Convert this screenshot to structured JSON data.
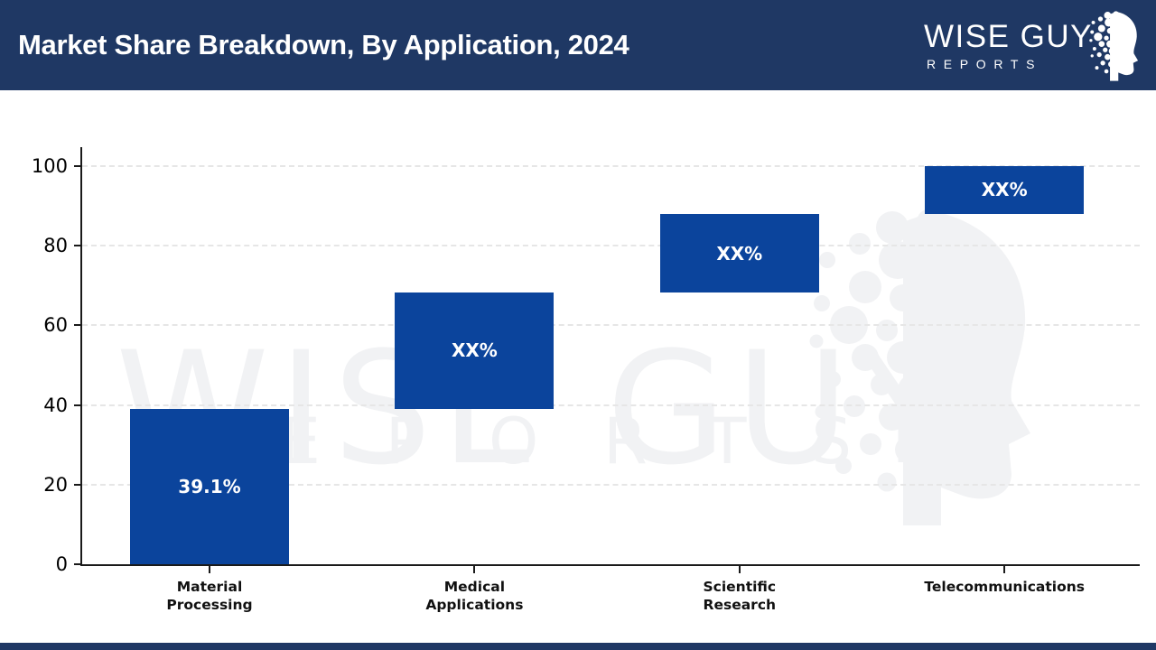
{
  "header": {
    "title": "Market Share Breakdown, By Application, 2024",
    "logo": {
      "line1": "WISE GUY",
      "line2": "REPORTS"
    },
    "background_color": "#1f3864"
  },
  "watermark": {
    "line1": "WISE GUY",
    "line2": "REPORTS"
  },
  "chart_data": {
    "type": "bar",
    "subtype": "waterfall",
    "title": "Market Share Breakdown, By Application, 2024",
    "categories": [
      "Material Processing",
      "Medical Applications",
      "Scientific Research",
      "Telecommunications"
    ],
    "segments": [
      {
        "category": "Material Processing",
        "label": "39.1%",
        "start": 0,
        "end": 39.1,
        "value": 39.1
      },
      {
        "category": "Medical Applications",
        "label": "XX%",
        "start": 39.1,
        "end": 68.2,
        "value": 29.1
      },
      {
        "category": "Scientific Research",
        "label": "XX%",
        "start": 68.2,
        "end": 88.0,
        "value": 19.8
      },
      {
        "category": "Telecommunications",
        "label": "XX%",
        "start": 88.0,
        "end": 100.0,
        "value": 12.0
      }
    ],
    "xlabel": "",
    "ylabel": "",
    "ylim": [
      0,
      100
    ],
    "yticks": [
      0,
      20,
      40,
      60,
      80,
      100
    ],
    "grid": "horizontal-dashed",
    "legend": "none",
    "bar_color": "#0b449c",
    "bar_label_color": "#ffffff",
    "axis_color": "#1a1a1a"
  }
}
